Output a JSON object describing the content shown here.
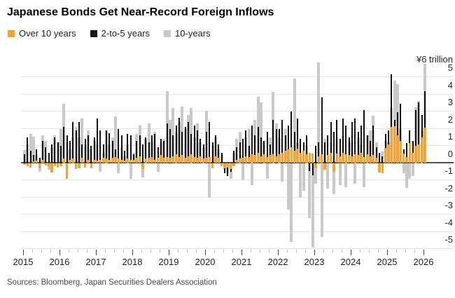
{
  "header": {
    "title": "Japanese Bonds Get Near-Record Foreign Inflows"
  },
  "legend": {
    "items": [
      {
        "label": "Over 10 years",
        "color": "#F5A32F"
      },
      {
        "label": "2-to-5 years",
        "color": "#141414"
      },
      {
        "label": "10-years",
        "color": "#C9C9C9"
      }
    ]
  },
  "axis": {
    "y_unit": "¥6 trillion",
    "y_ticks": [
      5,
      4,
      3,
      2,
      1,
      0,
      -1,
      -2,
      -3,
      -4,
      -5
    ],
    "x_years": [
      2015,
      2016,
      2017,
      2018,
      2019,
      2020,
      2021,
      2022,
      2023,
      2024,
      2025,
      2026
    ]
  },
  "footer": {
    "source": "Sources: Bloomberg, Japan Securities Dealers Association"
  },
  "colors": {
    "background": "#ffffff",
    "gridline": "#e3e3e3",
    "zero_line": "#55514b",
    "orange": "#F5A32F",
    "black": "#141414",
    "gray": "#C9C9C9"
  },
  "chart_data": {
    "type": "bar",
    "title": "Japanese Bonds Get Near-Record Foreign Inflows",
    "unit": "trillion yen",
    "frequency": "monthly",
    "start": "2015-01",
    "end": "2026-01",
    "ylim": [
      -5,
      6
    ],
    "grid": true,
    "legend_position": "top-left",
    "series": [
      {
        "name": "Over 10 years",
        "color": "#F5A32F",
        "values": [
          -0.1,
          -0.2,
          -0.25,
          0.1,
          0.15,
          -0.3,
          0.2,
          -0.15,
          -0.2,
          -0.55,
          -0.2,
          -0.25,
          -0.2,
          0.25,
          -0.9,
          0.2,
          0.25,
          -0.35,
          -0.3,
          0.3,
          -0.25,
          0.2,
          -0.3,
          0.2,
          0.15,
          0.2,
          0.3,
          0.25,
          0.2,
          0.3,
          0.35,
          0.25,
          0.2,
          0.15,
          0.25,
          0.2,
          0.2,
          0.3,
          0.4,
          -0.35,
          0.25,
          0.3,
          0.35,
          0.2,
          0.3,
          0.45,
          0.3,
          0.35,
          0.3,
          0.4,
          0.5,
          0.35,
          0.45,
          0.3,
          0.4,
          0.5,
          0.35,
          0.3,
          0.4,
          0.25,
          0.3,
          0.35,
          -0.3,
          0.4,
          0.3,
          -0.2,
          -0.3,
          -0.25,
          -0.35,
          -0.2,
          0.2,
          0.25,
          0.3,
          0.4,
          0.35,
          0.5,
          0.45,
          0.6,
          0.4,
          0.5,
          0.35,
          0.45,
          0.5,
          0.4,
          0.5,
          0.6,
          0.7,
          0.8,
          0.9,
          0.7,
          0.85,
          0.6,
          0.7,
          0.5,
          0.6,
          0.55,
          -0.3,
          0.4,
          0.5,
          -0.4,
          0.45,
          0.6,
          -0.5,
          0.55,
          0.4,
          0.6,
          0.5,
          0.45,
          0.4,
          0.5,
          0.45,
          0.6,
          0.35,
          0.5,
          0.4,
          0.47,
          0.3,
          -0.55,
          -0.6,
          0.88,
          1.1,
          2.1,
          2.13,
          1.6,
          1.3,
          0.55,
          0.35,
          1.15,
          0.6,
          1.0,
          1.1,
          1.5,
          2.05
        ]
      },
      {
        "name": "2-to-5 years",
        "color": "#141414",
        "values": [
          0.5,
          1.5,
          0.7,
          0.45,
          0.8,
          0.3,
          1.3,
          0.9,
          0.6,
          1.1,
          1.5,
          1.2,
          1.0,
          2.1,
          1.6,
          1.3,
          2.4,
          1.9,
          2.4,
          1.1,
          1.4,
          1.6,
          1.0,
          1.5,
          2.6,
          1.9,
          1.1,
          1.9,
          1.75,
          1.3,
          0.8,
          2.0,
          1.6,
          0.7,
          1.7,
          1.6,
          0.5,
          1.3,
          1.6,
          1.1,
          1.5,
          1.2,
          1.6,
          1.7,
          0.9,
          1.4,
          1.3,
          2.3,
          2.0,
          1.6,
          2.2,
          2.65,
          1.8,
          2.1,
          2.4,
          1.7,
          2.2,
          1.9,
          1.4,
          1.1,
          1.8,
          2.4,
          1.2,
          1.6,
          1.1,
          0.6,
          -0.6,
          -0.75,
          -0.5,
          0.7,
          0.9,
          1.2,
          1.4,
          1.9,
          1.0,
          2.2,
          1.6,
          2.1,
          1.5,
          1.3,
          1.8,
          1.1,
          2.5,
          2.0,
          2.0,
          2.5,
          1.6,
          2.2,
          3.0,
          1.8,
          2.6,
          1.4,
          1.2,
          1.6,
          -0.45,
          -0.7,
          1.0,
          1.2,
          3.8,
          1.2,
          1.6,
          2.4,
          1.8,
          2.5,
          1.4,
          2.6,
          2.2,
          1.5,
          2.4,
          2.6,
          1.8,
          2.2,
          3.1,
          1.6,
          1.3,
          2.2,
          0.9,
          0.6,
          0.4,
          1.7,
          1.9,
          5.15,
          2.5,
          2.95,
          3.45,
          0.8,
          1.15,
          1.9,
          1.3,
          3.1,
          3.55,
          2.8,
          4.2
        ]
      },
      {
        "name": "10-years",
        "color": "#C9C9C9",
        "values": [
          0.75,
          1.1,
          1.7,
          1.55,
          0.45,
          -0.5,
          1.6,
          1.3,
          -0.4,
          0.9,
          1.6,
          1.2,
          2.0,
          3.45,
          1.2,
          0.8,
          1.5,
          2.1,
          1.5,
          2.6,
          1.1,
          1.9,
          0.8,
          1.3,
          1.1,
          -0.5,
          0.6,
          1.9,
          1.1,
          1.5,
          2.7,
          -0.6,
          0.9,
          0.4,
          1.1,
          -0.9,
          0.6,
          1.7,
          2.2,
          -0.85,
          1.4,
          2.3,
          1.2,
          1.8,
          -0.5,
          1.2,
          1.4,
          4.2,
          2.5,
          3.2,
          1.8,
          2.4,
          3.3,
          2.0,
          2.8,
          3.2,
          1.5,
          2.3,
          1.2,
          0.9,
          3.05,
          -2.0,
          1.0,
          1.5,
          0.8,
          0.5,
          -0.4,
          -0.6,
          -0.9,
          0.6,
          1.4,
          1.8,
          -1.0,
          1.5,
          2.0,
          -1.3,
          2.5,
          3.87,
          3.55,
          1.2,
          -0.9,
          1.5,
          4.15,
          2.3,
          1.5,
          -1.1,
          2.0,
          -2.7,
          -4.6,
          4.9,
          1.2,
          -2.0,
          -1.6,
          1.0,
          -3.2,
          -4.9,
          -1.2,
          5.86,
          -4.3,
          1.4,
          -1.5,
          1.2,
          -1.8,
          1.5,
          -1.3,
          1.6,
          -1.4,
          1.2,
          1.3,
          -1.2,
          1.5,
          1.1,
          -1.4,
          1.6,
          1.9,
          2.76,
          1.2,
          -0.48,
          0.67,
          1.29,
          1.2,
          3.2,
          4.8,
          4.6,
          2.0,
          -0.6,
          -1.45,
          -0.9,
          -0.75,
          3.25,
          3.6,
          1.9,
          5.78
        ]
      }
    ]
  }
}
